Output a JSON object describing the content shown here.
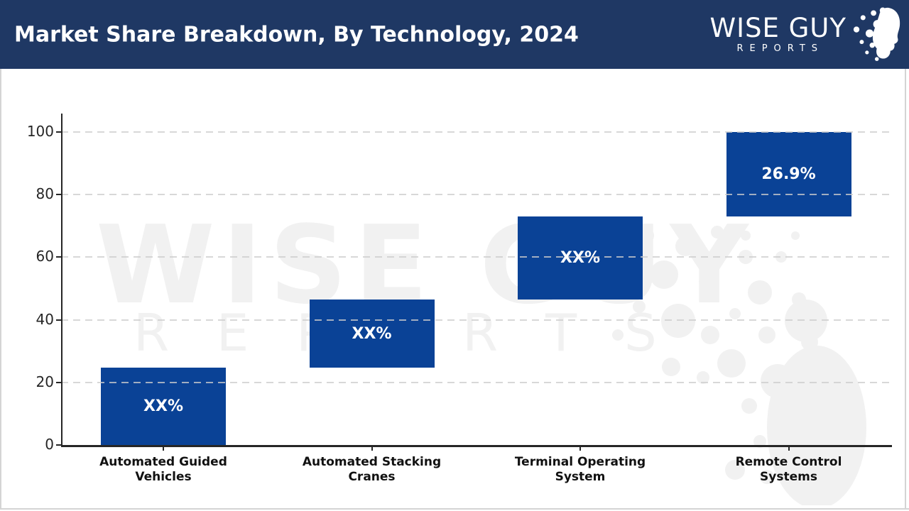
{
  "header": {
    "title": "Market Share Breakdown, By Technology, 2024",
    "logo": {
      "brand_line1": "WISE GUY",
      "brand_line2": "REPORTS"
    }
  },
  "watermark": {
    "line1": "WISE GUY",
    "line2": "R E P O R T S"
  },
  "colors": {
    "header_bg": "#1f3864",
    "header_text": "#ffffff",
    "bar": "#0a4296",
    "bar_label": "#ffffff",
    "axis": "#262626",
    "tick_label": "#262626",
    "category_label": "#111111",
    "grid": "#d2d2d2",
    "watermark": "#f1f1f1",
    "edge_line": "#d4d4d4"
  },
  "chart_data": {
    "type": "bar",
    "subtype": "floating-waterfall",
    "title": "Market Share Breakdown, By Technology, 2024",
    "categories": [
      "Automated Guided\nVehicles",
      "Automated Stacking\nCranes",
      "Terminal Operating\nSystem",
      "Remote Control\nSystems"
    ],
    "segments": [
      {
        "start": 0,
        "end": 24.7,
        "label": "XX%"
      },
      {
        "start": 24.7,
        "end": 46.4,
        "label": "XX%"
      },
      {
        "start": 46.4,
        "end": 73.1,
        "label": "XX%"
      },
      {
        "start": 73.1,
        "end": 100,
        "label": "26.9%"
      }
    ],
    "yticks": [
      0,
      20,
      40,
      60,
      80,
      100
    ],
    "ylim": [
      0,
      104.7
    ],
    "xlabel": "",
    "ylabel": "",
    "grid": "horizontal-dashed",
    "legend": "none"
  }
}
